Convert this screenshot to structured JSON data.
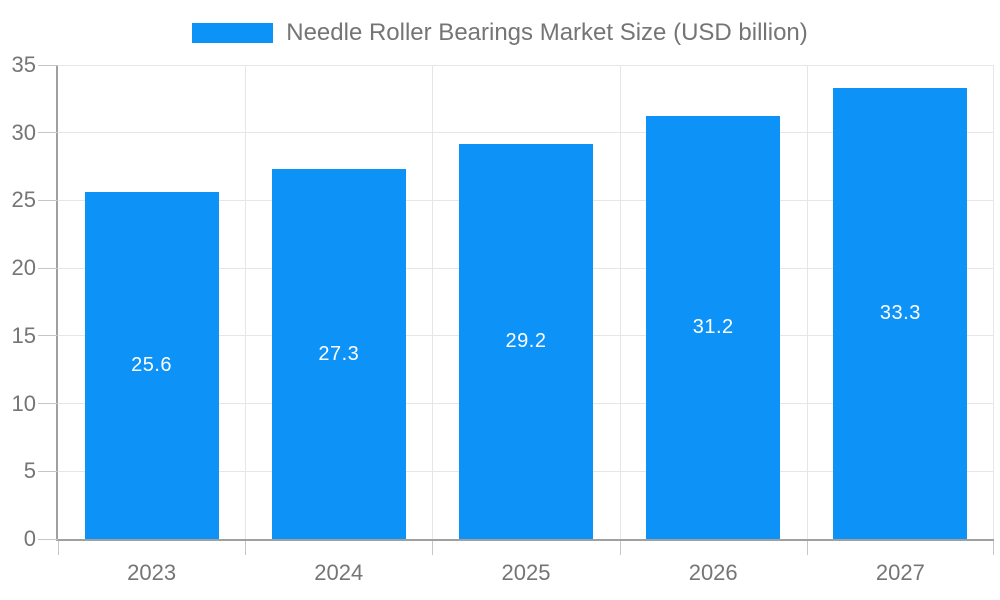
{
  "legend": {
    "label": "Needle Roller Bearings Market Size (USD billion)",
    "swatch_color": "#0D92F8"
  },
  "chart_data": {
    "type": "bar",
    "title": "Needle Roller Bearings Market Size (USD billion)",
    "categories": [
      "2023",
      "2024",
      "2025",
      "2026",
      "2027"
    ],
    "values": [
      25.6,
      27.3,
      29.2,
      31.2,
      33.3
    ],
    "value_labels": [
      "25.6",
      "27.3",
      "29.2",
      "31.2",
      "33.3"
    ],
    "xlabel": "",
    "ylabel": "",
    "ylim": [
      0,
      35
    ],
    "yticks": [
      0,
      5,
      10,
      15,
      20,
      25,
      30,
      35
    ],
    "grid": true,
    "legend_position": "top-center",
    "value_label_position": "inside-center",
    "colors": {
      "bar": "#0D92F8",
      "bar_label_text": "#ffffff",
      "axis_text": "#757575",
      "axis_line": "#a0a0a0",
      "grid_line": "#e6e6e6",
      "tick_line": "#c6c6c6",
      "background": "#ffffff"
    }
  }
}
